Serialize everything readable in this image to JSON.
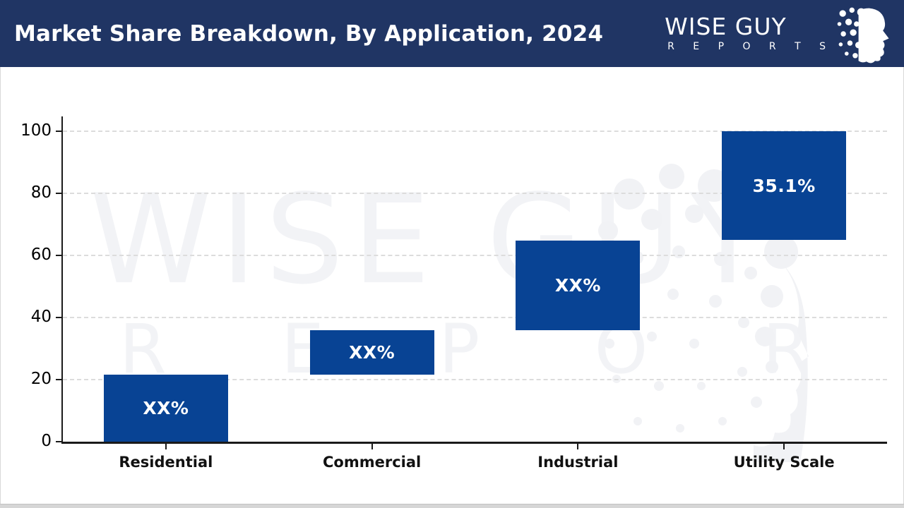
{
  "header": {
    "title": "Market Share Breakdown, By Application, 2024",
    "bg_color": "#203564",
    "logo": {
      "line1": "WISE GUY",
      "line2": "REPORTS"
    }
  },
  "watermark": {
    "line1": "WISE GUY",
    "line2": "REPORTS"
  },
  "chart_data": {
    "type": "bar",
    "subtype": "floating-stacked-percentage",
    "title": "Market Share Breakdown, By Application, 2024",
    "categories": [
      "Residential",
      "Commercial",
      "Industrial",
      "Utility Scale"
    ],
    "bars": [
      {
        "category": "Residential",
        "start": 0,
        "end": 21.6,
        "label": "XX%"
      },
      {
        "category": "Commercial",
        "start": 21.7,
        "end": 35.9,
        "label": "XX%"
      },
      {
        "category": "Industrial",
        "start": 36.0,
        "end": 64.8,
        "label": "XX%"
      },
      {
        "category": "Utility Scale",
        "start": 64.9,
        "end": 100.0,
        "label": "35.1%"
      }
    ],
    "yticks": [
      0,
      20,
      40,
      60,
      80,
      100
    ],
    "ylim": [
      0,
      105
    ],
    "xlabel": "",
    "ylabel": "",
    "grid": "horizontal-dashed",
    "legend": "none",
    "bar_color": "#084394",
    "bar_label_color": "#ffffff",
    "gridline_color": "#dcdcdc",
    "axis_color": "#1a1a1a"
  }
}
